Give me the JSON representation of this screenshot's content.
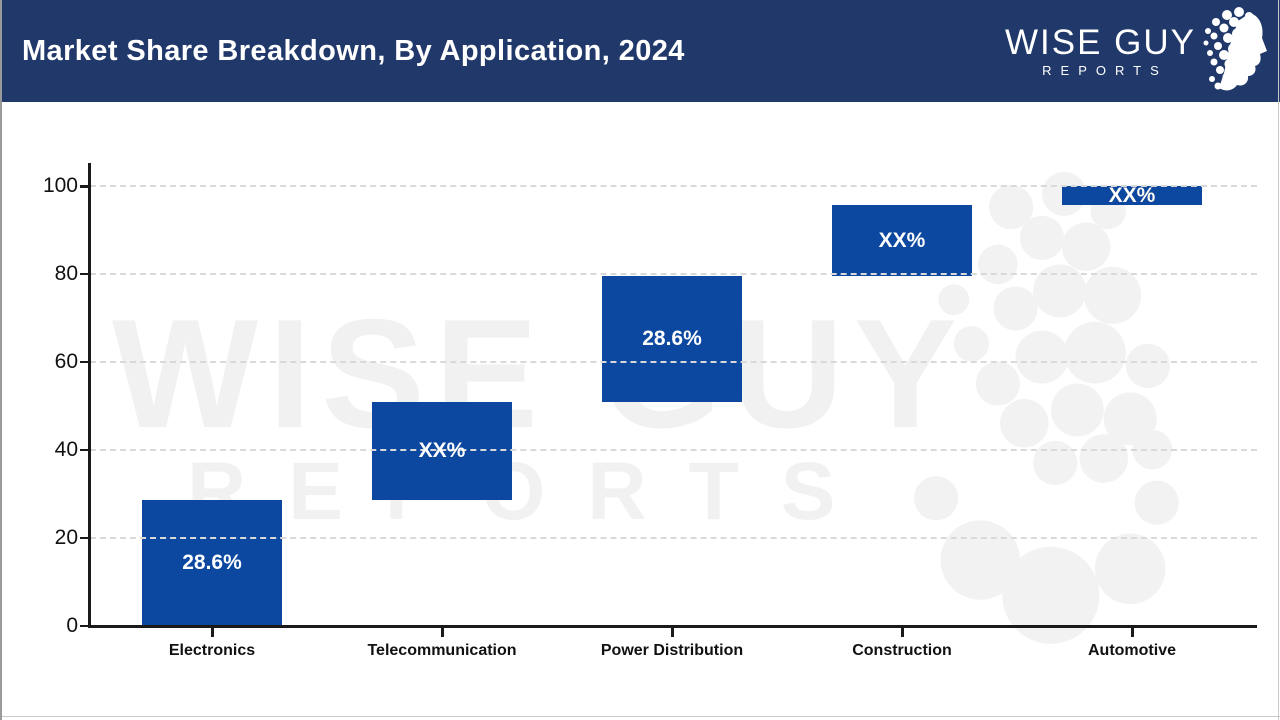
{
  "header": {
    "title": "Market Share Breakdown, By Application, 2024",
    "logo": {
      "line1": "WISE GUY",
      "line2": "REPORTS"
    }
  },
  "watermark": {
    "line1": "WISE GUY",
    "line2": "REPORTS"
  },
  "chart_data": {
    "type": "bar",
    "subtype": "waterfall-floating-bars",
    "title": "Market Share Breakdown, By Application, 2024",
    "categories": [
      "Electronics",
      "Telecommunication",
      "Power Distribution",
      "Construction",
      "Automotive"
    ],
    "segments": [
      {
        "category": "Electronics",
        "start": 0,
        "end": 28.6,
        "label": "28.6%"
      },
      {
        "category": "Telecommunication",
        "start": 28.6,
        "end": 50.9,
        "label": "XX%"
      },
      {
        "category": "Power Distribution",
        "start": 50.9,
        "end": 79.5,
        "label": "28.6%"
      },
      {
        "category": "Construction",
        "start": 79.5,
        "end": 95.6,
        "label": "XX%"
      },
      {
        "category": "Automotive",
        "start": 95.6,
        "end": 100,
        "label": "XX%"
      }
    ],
    "xlabel": "",
    "ylabel": "",
    "y_ticks": [
      0,
      20,
      40,
      60,
      80,
      100
    ],
    "ylim": [
      0,
      105
    ],
    "grid": "horizontal-dashed-over-bars",
    "legend": "none",
    "bar_color": "#0c47a0",
    "bar_label_color": "#ffffff"
  },
  "colors": {
    "header_bg": "#20386a",
    "bar": "#0c47a0",
    "gridline": "#d9d9d9",
    "axis": "#1a1a1a",
    "watermark": "#f1f1f1"
  }
}
